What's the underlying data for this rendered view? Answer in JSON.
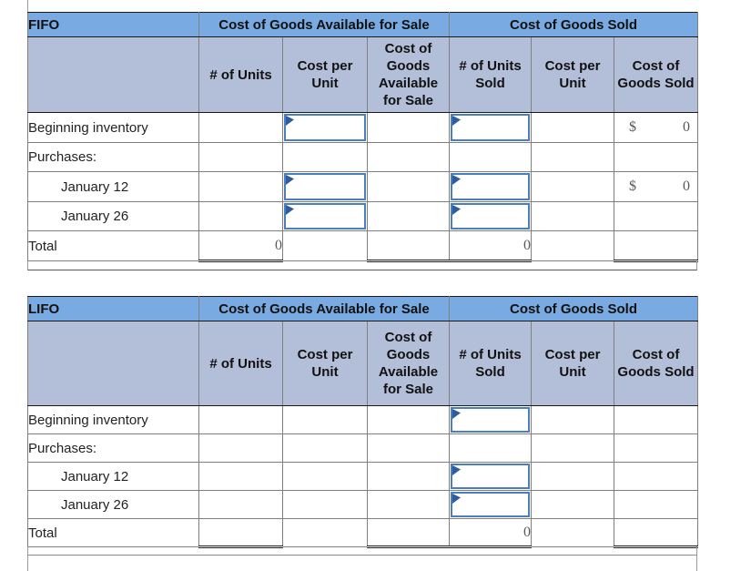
{
  "colors": {
    "header_bg": "#79aae1",
    "subheader_bg": "#b3bfd9",
    "input_border": "#4a7ec0",
    "marker": "#2e5d9f",
    "grid": "#808080",
    "value_text": "#585858"
  },
  "tables": [
    {
      "title": "FIFO",
      "groups": [
        "Cost of Goods Available for Sale",
        "Cost of Goods Sold"
      ],
      "columns": [
        "# of Units",
        "Cost per Unit",
        "Cost of Goods Available for Sale",
        "# of Units Sold",
        "Cost per Unit",
        "Cost of Goods Sold"
      ],
      "rows": [
        {
          "label": "Beginning inventory",
          "indent": false,
          "total": false,
          "cells": [
            {
              "type": "blank"
            },
            {
              "type": "input"
            },
            {
              "type": "blank"
            },
            {
              "type": "input"
            },
            {
              "type": "blank"
            },
            {
              "type": "money",
              "symbol": "$",
              "value": "0"
            }
          ]
        },
        {
          "label": "Purchases:",
          "indent": false,
          "total": false,
          "cells": [
            {
              "type": "blank"
            },
            {
              "type": "blank"
            },
            {
              "type": "blank"
            },
            {
              "type": "blank"
            },
            {
              "type": "blank"
            },
            {
              "type": "blank"
            }
          ]
        },
        {
          "label": "January 12",
          "indent": true,
          "total": false,
          "cells": [
            {
              "type": "blank"
            },
            {
              "type": "input"
            },
            {
              "type": "blank"
            },
            {
              "type": "input"
            },
            {
              "type": "blank"
            },
            {
              "type": "money",
              "symbol": "$",
              "value": "0"
            }
          ]
        },
        {
          "label": "January 26",
          "indent": true,
          "total": false,
          "cells": [
            {
              "type": "blank"
            },
            {
              "type": "input"
            },
            {
              "type": "blank"
            },
            {
              "type": "input"
            },
            {
              "type": "blank"
            },
            {
              "type": "blank"
            }
          ]
        },
        {
          "label": "Total",
          "indent": false,
          "total": true,
          "cells": [
            {
              "type": "value",
              "value": "0"
            },
            {
              "type": "blank"
            },
            {
              "type": "blank"
            },
            {
              "type": "value",
              "value": "0"
            },
            {
              "type": "blank"
            },
            {
              "type": "blank"
            }
          ]
        }
      ]
    },
    {
      "title": "LIFO",
      "groups": [
        "Cost of Goods Available for Sale",
        "Cost of Goods Sold"
      ],
      "columns": [
        "# of Units",
        "Cost per Unit",
        "Cost of Goods Available for Sale",
        "# of Units Sold",
        "Cost per Unit",
        "Cost of Goods Sold"
      ],
      "rows": [
        {
          "label": "Beginning inventory",
          "indent": false,
          "total": false,
          "cells": [
            {
              "type": "blank"
            },
            {
              "type": "blank"
            },
            {
              "type": "blank"
            },
            {
              "type": "input"
            },
            {
              "type": "blank"
            },
            {
              "type": "blank"
            }
          ]
        },
        {
          "label": "Purchases:",
          "indent": false,
          "total": false,
          "cells": [
            {
              "type": "blank"
            },
            {
              "type": "blank"
            },
            {
              "type": "blank"
            },
            {
              "type": "blank"
            },
            {
              "type": "blank"
            },
            {
              "type": "blank"
            }
          ]
        },
        {
          "label": "January 12",
          "indent": true,
          "total": false,
          "cells": [
            {
              "type": "blank"
            },
            {
              "type": "blank"
            },
            {
              "type": "blank"
            },
            {
              "type": "input"
            },
            {
              "type": "blank"
            },
            {
              "type": "blank"
            }
          ]
        },
        {
          "label": "January 26",
          "indent": true,
          "total": false,
          "cells": [
            {
              "type": "blank"
            },
            {
              "type": "blank"
            },
            {
              "type": "blank"
            },
            {
              "type": "input"
            },
            {
              "type": "blank"
            },
            {
              "type": "blank"
            }
          ]
        },
        {
          "label": "Total",
          "indent": false,
          "total": true,
          "cells": [
            {
              "type": "blank"
            },
            {
              "type": "blank"
            },
            {
              "type": "blank"
            },
            {
              "type": "value",
              "value": "0"
            },
            {
              "type": "blank"
            },
            {
              "type": "blank"
            }
          ]
        }
      ]
    }
  ]
}
